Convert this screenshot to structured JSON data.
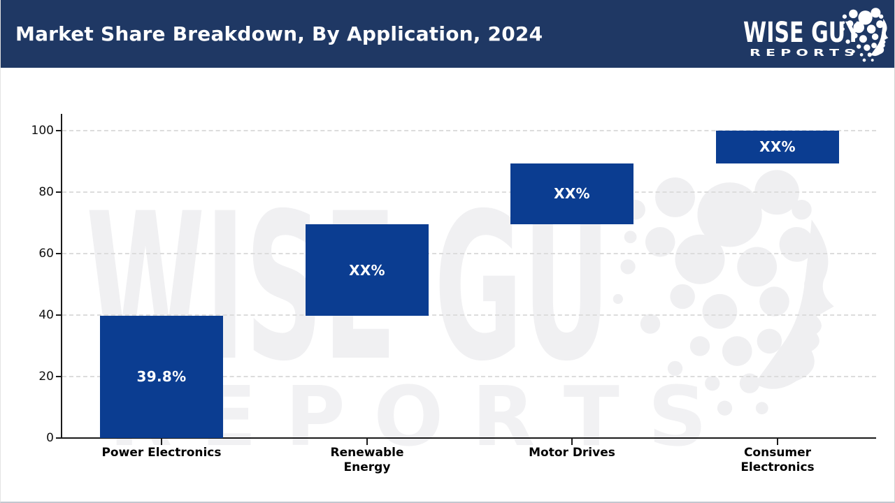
{
  "header": {
    "title": "Market Share Breakdown, By Application, 2024",
    "logo": {
      "name": "WISE GUY",
      "sub": "R E P O R T S"
    }
  },
  "watermark": {
    "line1": "WISE GU",
    "line2": "R E P O R T S"
  },
  "chart_data": {
    "type": "bar",
    "subtype": "waterfall-stacked-market-share",
    "title": "Market Share Breakdown, By Application, 2024",
    "categories": [
      "Power Electronics",
      "Renewable Energy",
      "Motor Drives",
      "Consumer Electronics"
    ],
    "bars": [
      {
        "category": "Power Electronics",
        "start": 0,
        "end": 39.8,
        "label": "39.8%"
      },
      {
        "category": "Renewable Energy",
        "start": 39.8,
        "end": 69.5,
        "label": "XX%"
      },
      {
        "category": "Motor Drives",
        "start": 69.5,
        "end": 89.4,
        "label": "XX%"
      },
      {
        "category": "Consumer Electronics",
        "start": 89.4,
        "end": 100,
        "label": "XX%"
      }
    ],
    "xlabel": "",
    "ylabel": "",
    "ylim": [
      0,
      100
    ],
    "yticks": [
      0,
      20,
      40,
      60,
      80,
      100
    ],
    "grid": "horizontal-dashed",
    "legend": null,
    "bar_color": "#0b3d91",
    "bar_label_color": "#ffffff"
  },
  "colors": {
    "header_bg": "#1f3864",
    "bar": "#0b3d91",
    "grid": "#dcdcdc",
    "axis": "#1a1a1a",
    "watermark": "#f0f0f2"
  }
}
